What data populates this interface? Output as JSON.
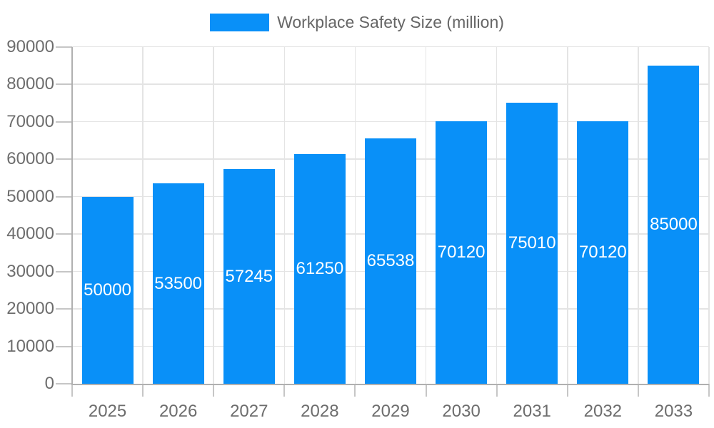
{
  "page": {
    "background": "#ffffff"
  },
  "legend": {
    "label": "Workplace Safety Size (million)"
  },
  "chart_data": {
    "type": "bar",
    "title": "Workplace Safety Size (million)",
    "categories": [
      "2025",
      "2026",
      "2027",
      "2028",
      "2029",
      "2030",
      "2031",
      "2032",
      "2033"
    ],
    "values": [
      50000,
      53500,
      57245,
      61250,
      65538,
      70120,
      75010,
      70120,
      85000
    ],
    "series": [
      {
        "name": "Workplace Safety Size (million)",
        "values": [
          50000,
          53500,
          57245,
          61250,
          65538,
          70120,
          75010,
          70120,
          85000
        ]
      }
    ],
    "value_labels": [
      "50000",
      "53500",
      "57245",
      "61250",
      "65538",
      "70120",
      "75010",
      "70120",
      "85000"
    ],
    "yticks": [
      0,
      10000,
      20000,
      30000,
      40000,
      50000,
      60000,
      70000,
      80000,
      90000
    ],
    "ytick_labels": [
      "0",
      "10000",
      "20000",
      "30000",
      "40000",
      "50000",
      "60000",
      "70000",
      "80000",
      "90000"
    ],
    "ylim": [
      0,
      90000
    ],
    "xlabel": "",
    "ylabel": "",
    "grid": true,
    "legend_position": "top",
    "value_label_position": "inside-center",
    "colors": {
      "bar": "#0990f8",
      "grid": "#e4e4e4",
      "axis": "#b0b0b0",
      "tick": "#c6c6c6",
      "axis_text": "#6d6d6d",
      "legend_text": "#666666",
      "value_text": "#ffffff"
    }
  }
}
